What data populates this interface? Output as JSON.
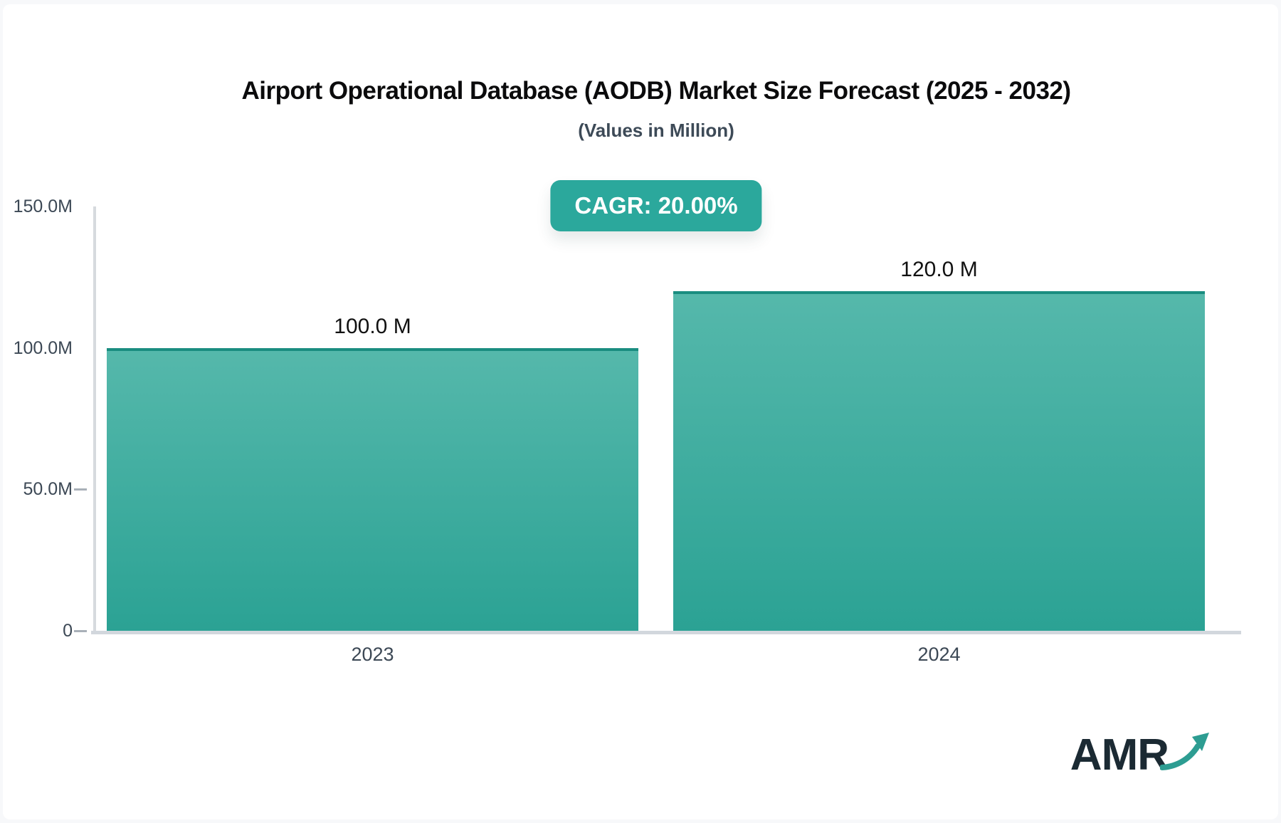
{
  "page": {
    "background": "#f7f8fa",
    "card_background": "#ffffff"
  },
  "header": {
    "title": "Airport Operational Database (AODB) Market Size Forecast (2025 - 2032)",
    "subtitle": "(Values in Million)"
  },
  "badge": {
    "label": "CAGR: 20.00%",
    "background": "#2ba89c",
    "text_color": "#ffffff"
  },
  "chart_data": {
    "type": "bar",
    "title": "Airport Operational Database (AODB) Market Size Forecast (2025 - 2032)",
    "subtitle": "(Values in Million)",
    "categories": [
      "2023",
      "2024"
    ],
    "values": [
      100.0,
      120.0
    ],
    "value_labels": [
      "100.0 M",
      "120.0 M"
    ],
    "unit": "Million",
    "ylim": [
      0,
      150
    ],
    "yticks": [
      {
        "label": "0",
        "value": 0,
        "tick": true
      },
      {
        "label": "50.0M",
        "value": 50,
        "tick": true
      },
      {
        "label": "100.0M",
        "value": 100,
        "tick": false
      },
      {
        "label": "150.0M",
        "value": 150,
        "tick": false
      }
    ],
    "grid": false,
    "legend": "none",
    "cagr": "20.00%",
    "bar_gradient_top": "#55b8ab",
    "bar_gradient_bottom": "#2ba294",
    "bar_top_border": "#1a8d80",
    "axis_color": "#d6dade",
    "label_color": "#3c4855"
  },
  "logo": {
    "text": "AMR",
    "icon": "trend-up-arrow-icon",
    "text_color": "#1b2a33",
    "arrow_color": "#2d9d92"
  }
}
